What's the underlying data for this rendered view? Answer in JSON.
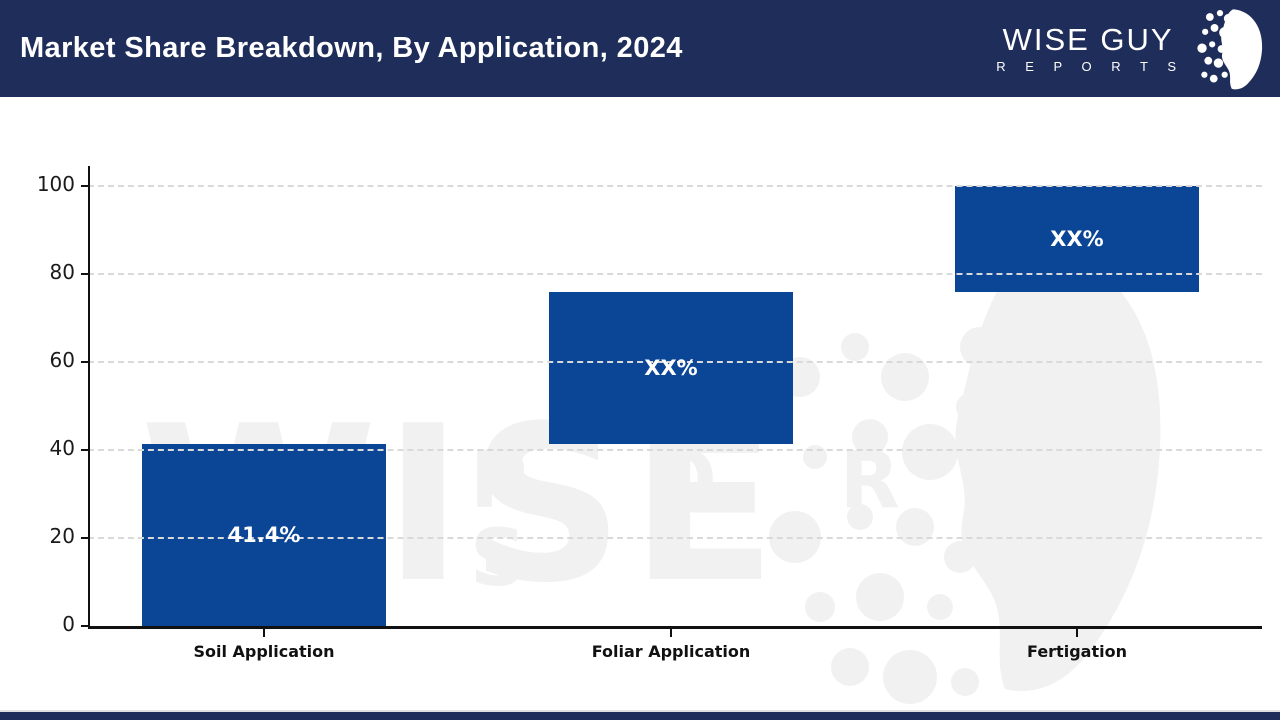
{
  "header": {
    "title": "Market Share Breakdown, By Application, 2024",
    "logo": {
      "wordmark": "WISE GUY",
      "subtext": "R E P O R T S"
    }
  },
  "watermark": {
    "big_text": "WISE",
    "sub_text": "P O R T S"
  },
  "colors": {
    "header_bg": "#1f2d5a",
    "bar_fill": "#0a4596",
    "grid": "#d9d9d9",
    "axis": "#111111",
    "bar_label_text": "#ffffff"
  },
  "chart_data": {
    "type": "bar",
    "variant": "waterfall",
    "title": "Market Share Breakdown, By Application, 2024",
    "categories": [
      "Soil Application",
      "Foliar Application",
      "Fertigation"
    ],
    "segments": [
      {
        "category": "Soil Application",
        "start": 0,
        "end": 41.4,
        "label": "41.4%"
      },
      {
        "category": "Foliar Application",
        "start": 41.4,
        "end": 76,
        "label": "XX%"
      },
      {
        "category": "Fertigation",
        "start": 76,
        "end": 100,
        "label": "XX%"
      }
    ],
    "xlabel": "",
    "ylabel": "",
    "yticks": [
      0,
      20,
      40,
      60,
      80,
      100
    ],
    "ylim": [
      0,
      105
    ],
    "grid": "horizontal-dashed",
    "legend": "none"
  }
}
